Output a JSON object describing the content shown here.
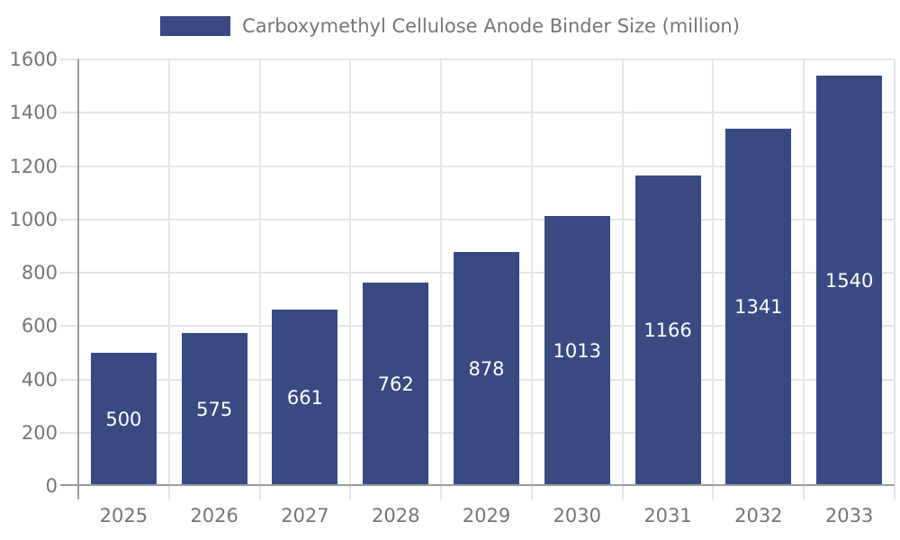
{
  "chart_data": {
    "type": "bar",
    "title": "Carboxymethyl Cellulose Anode Binder Size (million)",
    "legend": {
      "label": "Carboxymethyl Cellulose Anode Binder Size (million)",
      "position": "top-center"
    },
    "categories": [
      "2025",
      "2026",
      "2027",
      "2028",
      "2029",
      "2030",
      "2031",
      "2032",
      "2033"
    ],
    "values": [
      500,
      575,
      661,
      762,
      878,
      1013,
      1166,
      1341,
      1540
    ],
    "xlabel": "",
    "ylabel": "",
    "ylim": [
      0,
      1600
    ],
    "ytick_interval": 200,
    "ytick_labels": [
      "0",
      "200",
      "400",
      "600",
      "800",
      "1000",
      "1200",
      "1400",
      "1600"
    ],
    "grid": "on",
    "bar_labels_inside": true,
    "colors": {
      "bar": "#394A82",
      "bar_value_text": "#ffffff",
      "axis_text": "#757575",
      "legend_text": "#757575",
      "gridline": "#e4e4e4",
      "axis_line": "#9b9b9b",
      "background": "#ffffff"
    }
  }
}
